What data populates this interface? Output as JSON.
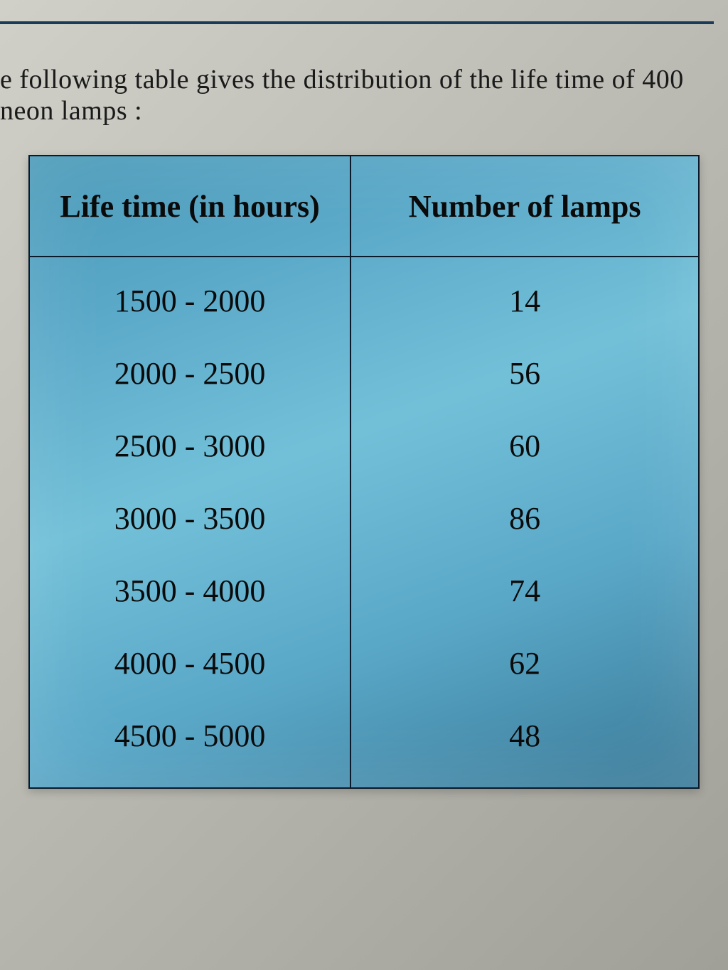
{
  "intro_text": "e following table gives the distribution of the life time of 400 neon lamps :",
  "table": {
    "columns": [
      "Life time (in hours)",
      "Number of lamps"
    ],
    "rows": [
      [
        "1500 - 2000",
        "14"
      ],
      [
        "2000 - 2500",
        "56"
      ],
      [
        "2500 - 3000",
        "60"
      ],
      [
        "3000 - 3500",
        "86"
      ],
      [
        "3500 - 4000",
        "74"
      ],
      [
        "4000 - 4500",
        "62"
      ],
      [
        "4500 - 5000",
        "48"
      ]
    ],
    "header_fontsize": 44,
    "cell_fontsize": 44,
    "border_color": "#0a1a2a",
    "bg_gradient_start": "#4a9ab8",
    "bg_gradient_mid": "#72c0d8",
    "bg_gradient_end": "#3a7a98",
    "text_color": "#0a0a0a"
  },
  "page_bg": "#c8c8c0",
  "rule_color": "#1a3a5a"
}
